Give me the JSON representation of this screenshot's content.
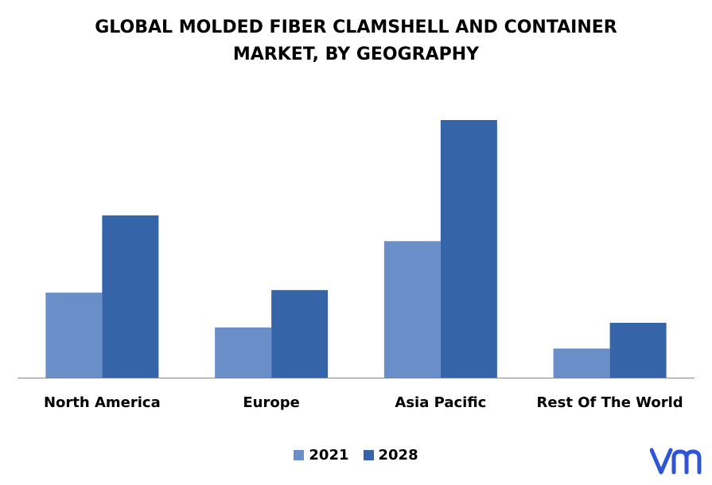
{
  "colors": {
    "series_2021": "#6a8fc8",
    "series_2028": "#3565a8",
    "axis": "#888888",
    "logo": "#2f55d4"
  },
  "chart_data": {
    "type": "bar",
    "title_lines": [
      "GLOBAL MOLDED FIBER CLAMSHELL AND CONTAINER",
      "MARKET, BY GEOGRAPHY"
    ],
    "categories": [
      "North America",
      "Europe",
      "Asia Pacific",
      "Rest Of The World"
    ],
    "series": [
      {
        "name": "2021",
        "values": [
          33,
          19.5,
          53,
          11.3
        ]
      },
      {
        "name": "2028",
        "values": [
          63,
          34,
          100,
          21.3
        ]
      }
    ],
    "ylim": [
      0,
      100
    ],
    "grid": false,
    "legend_position": "bottom-center"
  },
  "logo": {
    "icon": "vmr-logo-icon"
  }
}
